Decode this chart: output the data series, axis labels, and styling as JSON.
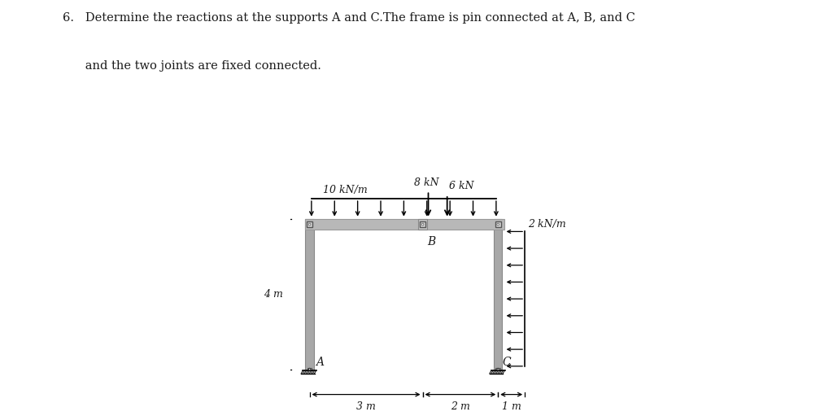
{
  "title_line1": "6.   Determine the reactions at the supports A and C.The frame is pin connected at A, B, and C",
  "title_line2": "      and the two joints are fixed connected.",
  "bg_color": "#ffffff",
  "text_color": "#1a1a1a",
  "label_10kNm": "10 kN/m",
  "label_8kN": "8 kN",
  "label_6kN": "6 kN",
  "label_2kNm": "2 kN/m",
  "label_4m": "4 m",
  "label_3m": "3 m",
  "label_2m": "2 m",
  "label_1m": "1 m",
  "label_A": "A",
  "label_B": "B",
  "label_C": "C",
  "col_gray": "#a8a8a8",
  "col_gray_dark": "#888888",
  "beam_gray": "#b8b8b8",
  "beam_gray_dark": "#999999"
}
